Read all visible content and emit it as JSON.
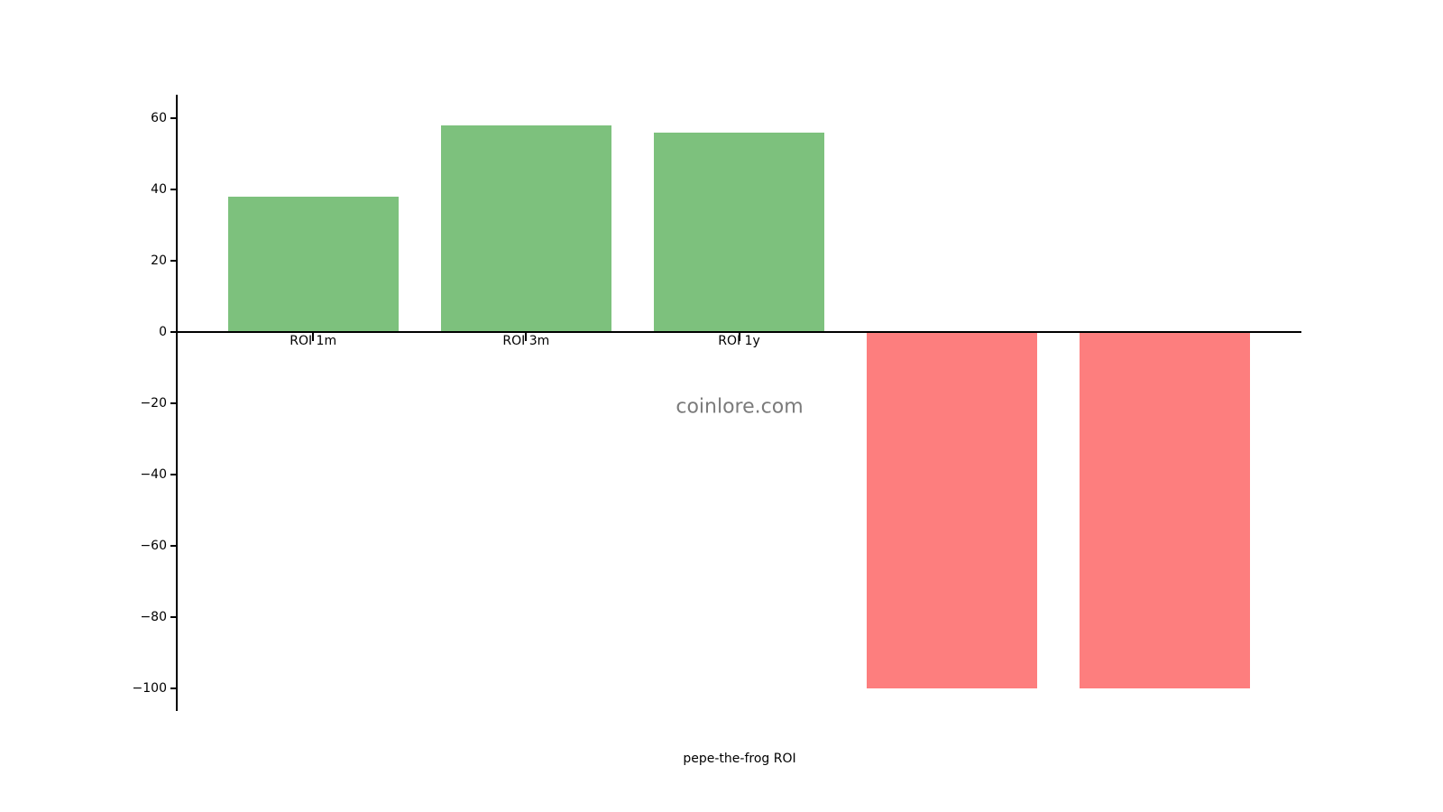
{
  "watermark": {
    "text": "coinlore.com",
    "color": "#7b7b7b"
  },
  "footer": {
    "label": "pepe-the-frog ROI"
  },
  "chart_data": {
    "type": "bar",
    "title": "",
    "xlabel": "pepe-the-frog ROI",
    "ylabel": "",
    "categories": [
      "ROI 1m",
      "ROI 3m",
      "ROI 1y",
      "",
      ""
    ],
    "values": [
      38,
      58,
      56,
      -100,
      -100
    ],
    "yticks": [
      60,
      40,
      20,
      0,
      -20,
      -40,
      -60,
      -80,
      -100
    ],
    "ylim": [
      -106.5,
      66.5
    ],
    "grid": false,
    "legend": null,
    "colors": {
      "positive_bar": "#7dc17d",
      "negative_bar": "#fd7e7e",
      "axis": "#000000",
      "tick_label": "#000000",
      "watermark": "#7b7b7b"
    },
    "watermark": "coinlore.com"
  }
}
